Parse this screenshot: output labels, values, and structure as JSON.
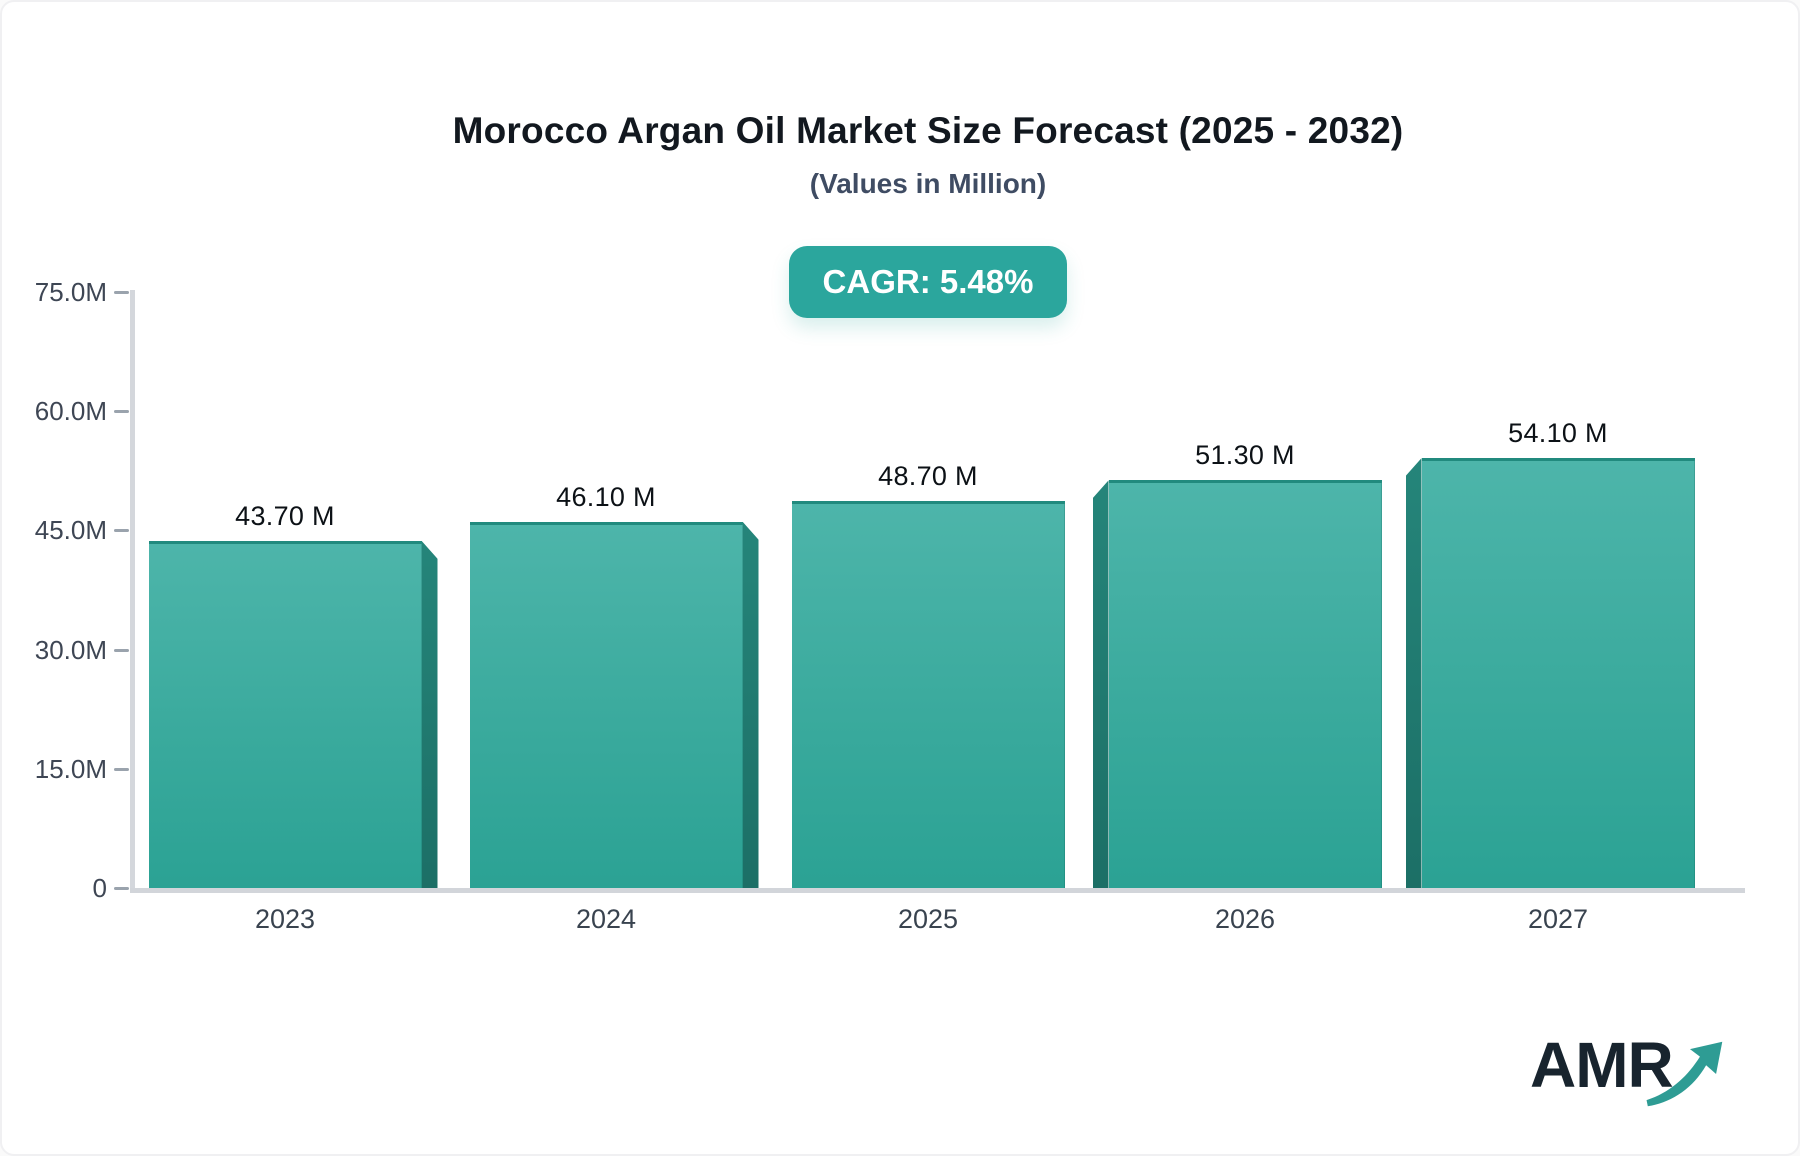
{
  "header": {
    "title": "Morocco Argan Oil Market Size Forecast (2025 - 2032)",
    "subtitle": "(Values in Million)",
    "cagr_label": "CAGR: 5.48%"
  },
  "chart_data": {
    "type": "bar",
    "title": "Morocco Argan Oil Market Size Forecast (2025 - 2032)",
    "subtitle": "(Values in Million)",
    "unit": "Million",
    "cagr_percent": 5.48,
    "categories": [
      "2023",
      "2024",
      "2025",
      "2026",
      "2027"
    ],
    "values": [
      43.7,
      46.1,
      48.7,
      51.3,
      54.1
    ],
    "value_labels": [
      "43.70 M",
      "46.10 M",
      "48.70 M",
      "51.30 M",
      "54.10 M"
    ],
    "y_ticks": [
      {
        "label": "75.0M",
        "value": 75
      },
      {
        "label": "60.0M",
        "value": 60
      },
      {
        "label": "45.0M",
        "value": 45
      },
      {
        "label": "30.0M",
        "value": 30
      },
      {
        "label": "15.0M",
        "value": 15
      },
      {
        "label": "0",
        "value": 0
      }
    ],
    "ylim": [
      0,
      75
    ],
    "grid": "off",
    "legend": "none"
  },
  "colors": {
    "bar_top": "#4db5aa",
    "bar_bottom": "#2ba294",
    "bar_side_dark": "#1f786e",
    "badge_bg": "#2ba69d",
    "axis_line": "#d3d6db",
    "tick_text": "#3e4654",
    "title_text": "#12181f",
    "subtitle_text": "#3f4c63",
    "logo_text": "#18242e",
    "logo_arrow": "#2e9c94"
  },
  "logo": {
    "text": "AMR"
  }
}
